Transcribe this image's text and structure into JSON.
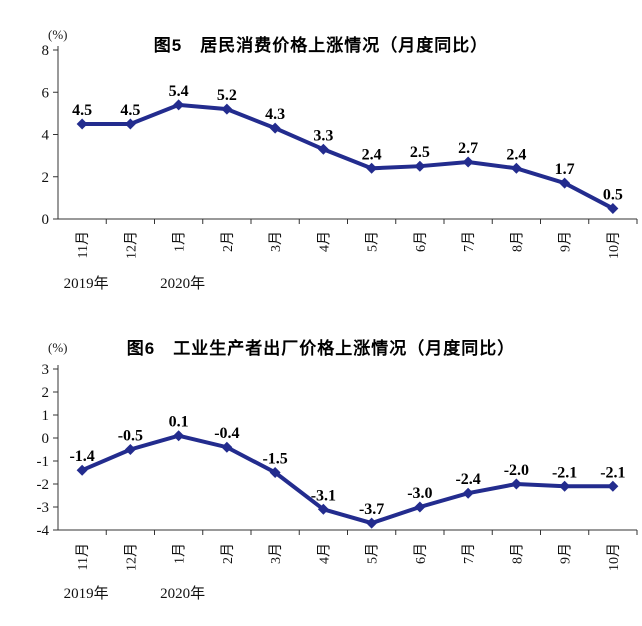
{
  "chart_data": [
    {
      "id": "figure5",
      "type": "line",
      "title": "图5　居民消费价格上涨情况（月度同比）",
      "unit_label": "(%)",
      "categories": [
        "11月",
        "12月",
        "1月",
        "2月",
        "3月",
        "4月",
        "5月",
        "6月",
        "7月",
        "8月",
        "9月",
        "10月"
      ],
      "values": [
        4.5,
        4.5,
        5.4,
        5.2,
        4.3,
        3.3,
        2.4,
        2.5,
        2.7,
        2.4,
        1.7,
        0.5
      ],
      "data_labels": [
        "4.5",
        "4.5",
        "5.4",
        "5.2",
        "4.3",
        "3.3",
        "2.4",
        "2.5",
        "2.7",
        "2.4",
        "1.7",
        "0.5"
      ],
      "ylim": [
        0,
        8
      ],
      "yticks": [
        0,
        2,
        4,
        6,
        8
      ],
      "ytick_labels": [
        "0",
        "2",
        "4",
        "6",
        "8"
      ],
      "year_annotations": [
        {
          "label": "2019年",
          "category_index": 0
        },
        {
          "label": "2020年",
          "category_index": 2
        }
      ],
      "line_color": "#232c8e",
      "label_color": "#000000",
      "marker": "diamond",
      "grid": false,
      "legend": null
    },
    {
      "id": "figure6",
      "type": "line",
      "title": "图6　工业生产者出厂价格上涨情况（月度同比）",
      "unit_label": "(%)",
      "categories": [
        "11月",
        "12月",
        "1月",
        "2月",
        "3月",
        "4月",
        "5月",
        "6月",
        "7月",
        "8月",
        "9月",
        "10月"
      ],
      "values": [
        -1.4,
        -0.5,
        0.1,
        -0.4,
        -1.5,
        -3.1,
        -3.7,
        -3.0,
        -2.4,
        -2.0,
        -2.1,
        -2.1
      ],
      "data_labels": [
        "-1.4",
        "-0.5",
        "0.1",
        "-0.4",
        "-1.5",
        "-3.1",
        "-3.7",
        "-3.0",
        "-2.4",
        "-2.0",
        "-2.1",
        "-2.1"
      ],
      "ylim": [
        -4,
        3
      ],
      "yticks": [
        -4,
        -3,
        -2,
        -1,
        0,
        1,
        2,
        3
      ],
      "ytick_labels": [
        "-4",
        "-3",
        "-2",
        "-1",
        "0",
        "1",
        "2",
        "3"
      ],
      "year_annotations": [
        {
          "label": "2019年",
          "category_index": 0
        },
        {
          "label": "2020年",
          "category_index": 2
        }
      ],
      "line_color": "#232c8e",
      "label_color": "#000000",
      "marker": "diamond",
      "grid": false,
      "legend": null
    }
  ]
}
